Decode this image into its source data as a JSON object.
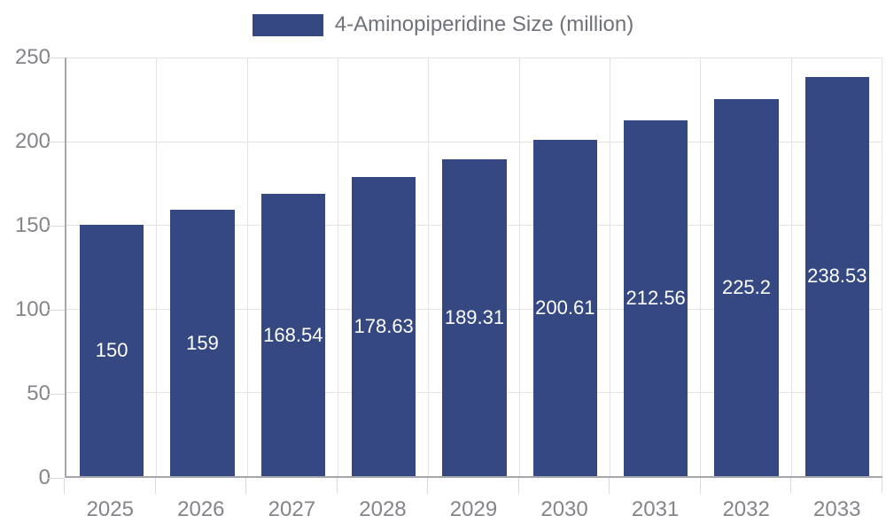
{
  "legend": {
    "label": "4-Aminopiperidine Size (million)"
  },
  "chart_data": {
    "type": "bar",
    "title": "4-Aminopiperidine Size (million)",
    "categories": [
      "2025",
      "2026",
      "2027",
      "2028",
      "2029",
      "2030",
      "2031",
      "2032",
      "2033"
    ],
    "series": [
      {
        "name": "4-Aminopiperidine Size (million)",
        "values": [
          150,
          159,
          168.54,
          178.63,
          189.31,
          200.61,
          212.56,
          225.2,
          238.53
        ]
      }
    ],
    "value_labels": [
      "150",
      "159",
      "168.54",
      "178.63",
      "189.31",
      "200.61",
      "212.56",
      "225.2",
      "238.53"
    ],
    "xlabel": "",
    "ylabel": "",
    "ylim": [
      0,
      250
    ],
    "yticks": [
      0,
      50,
      100,
      150,
      200,
      250
    ],
    "grid": true,
    "legend_position": "top",
    "value_label_position": "inside-center",
    "colors": {
      "bar": "#354881",
      "axis_label": "#84858b",
      "legend_text": "#70727a",
      "gridline": "#e2e2e7",
      "tick": "#d9d9de",
      "axis_line": "#a6a6ac",
      "value_label": "#ffffff",
      "background": "#ffffff"
    }
  }
}
